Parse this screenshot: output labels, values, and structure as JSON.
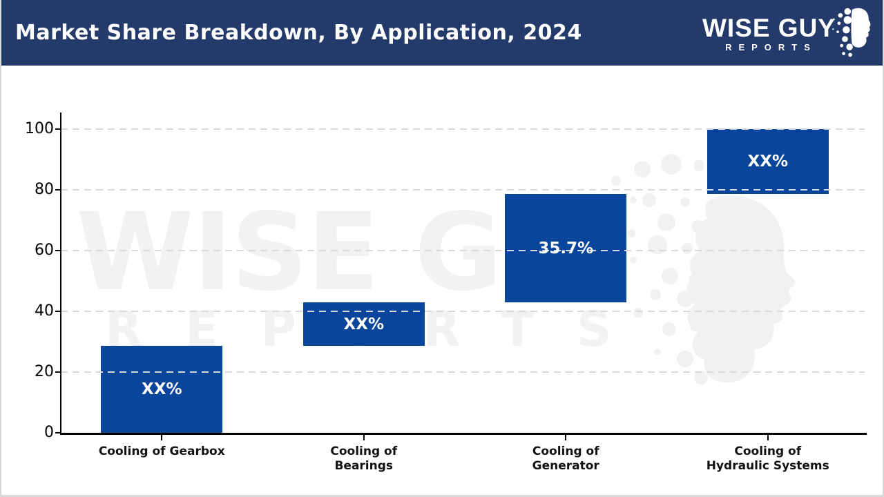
{
  "header": {
    "title": "Market Share Breakdown, By Application, 2024",
    "logo": {
      "brand_line1": "WISE GUY",
      "brand_line2": "REPORTS",
      "face_icon": "dotted-head-profile-icon"
    }
  },
  "watermark": {
    "line1": "WISE GU",
    "line2": "REPORTS"
  },
  "colors": {
    "header_bg": "#243A6B",
    "bar": "#0A459C",
    "grid": "#d9d9d9",
    "axis": "#000000",
    "watermark": "#f2f2f3",
    "bar_label": "#ffffff"
  },
  "chart_data": {
    "type": "bar",
    "subtype": "waterfall",
    "title": "Market Share Breakdown, By Application, 2024",
    "xlabel": "",
    "ylabel": "",
    "ylim": [
      0,
      100
    ],
    "yticks": [
      0,
      20,
      40,
      60,
      80,
      100
    ],
    "grid": "horizontal dashed",
    "legend": "none",
    "categories": [
      "Cooling of Gearbox",
      "Cooling of\nBearings",
      "Cooling of\nGenerator",
      "Cooling of\nHydraulic Systems"
    ],
    "segments": [
      {
        "category": "Cooling of Gearbox",
        "start": 0,
        "end": 28.6,
        "value_label": "XX%"
      },
      {
        "category": "Cooling of Bearings",
        "start": 28.6,
        "end": 42.9,
        "value_label": "XX%"
      },
      {
        "category": "Cooling of Generator",
        "start": 42.9,
        "end": 78.6,
        "value_label": "35.7%"
      },
      {
        "category": "Cooling of Hydraulic Systems",
        "start": 78.6,
        "end": 100,
        "value_label": "XX%"
      }
    ]
  }
}
